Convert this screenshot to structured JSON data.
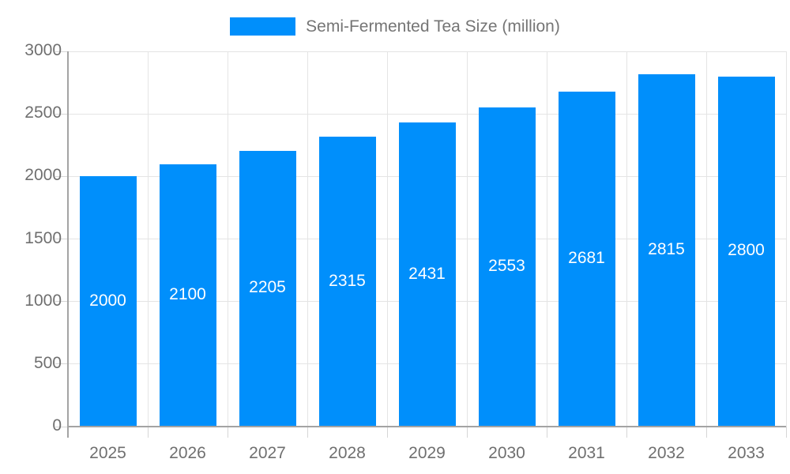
{
  "chart_data": {
    "type": "bar",
    "categories": [
      "2025",
      "2026",
      "2027",
      "2028",
      "2029",
      "2030",
      "2031",
      "2032",
      "2033"
    ],
    "series": [
      {
        "name": "Semi-Fermented Tea Size (million)",
        "values": [
          2000,
          2100,
          2205,
          2315,
          2431,
          2553,
          2681,
          2815,
          2800
        ]
      }
    ],
    "title": "",
    "xlabel": "",
    "ylabel": "",
    "ylim": [
      0,
      3000
    ],
    "ytick_step": 500,
    "yticks": [
      "0",
      "500",
      "1000",
      "1500",
      "2000",
      "2500",
      "3000"
    ],
    "grid": "on",
    "legend_position": "top",
    "data_labels": "inside-center",
    "colors": {
      "bar": "#008FFB",
      "grid": "#e4e4e4",
      "axis": "#a3a3a3",
      "tick": "#d6d6d6",
      "axis_label_text": "#6f6f6f",
      "legend_text": "#757575",
      "data_label_text": "#ffffff",
      "background": "#ffffff"
    }
  }
}
